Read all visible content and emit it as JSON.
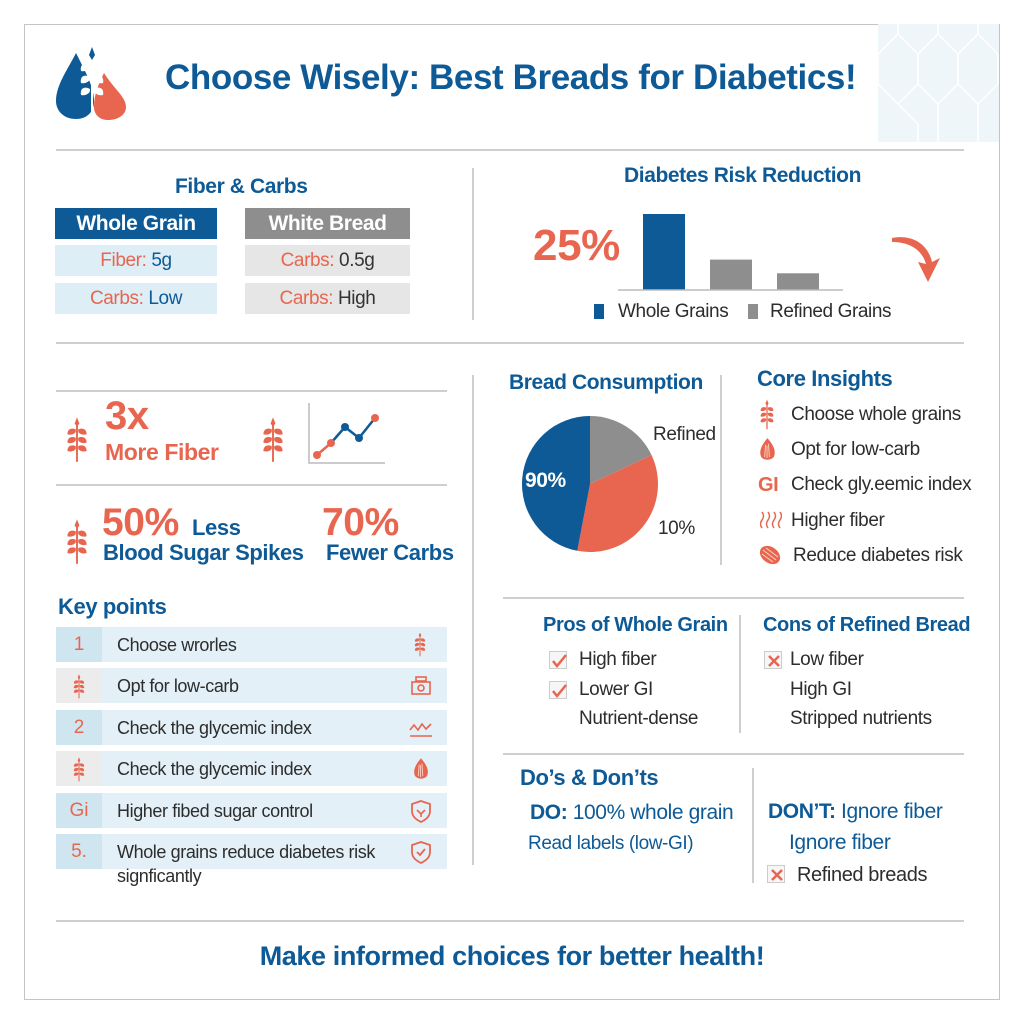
{
  "title": "Choose Wisely: Best Breads for Diabetics!",
  "colors": {
    "blue": "#0d5a96",
    "orange": "#e8664f",
    "gray": "#8e8e8e",
    "light_blue": "#ddeef7"
  },
  "fiber_carbs": {
    "title": "Fiber & Carbs",
    "whole_grain": {
      "header": "Whole Grain",
      "rows": [
        {
          "label": "Fiber:",
          "value": "5g"
        },
        {
          "label": "Carbs:",
          "value": "Low"
        }
      ]
    },
    "white_bread": {
      "header": "White Bread",
      "rows": [
        {
          "label": "Carbs:",
          "value": "0.5g"
        },
        {
          "label": "Carbs:",
          "value": "High"
        }
      ]
    }
  },
  "risk": {
    "title": "Diabetes Risk Reduction",
    "big_stat": "25%",
    "bars": [
      {
        "series": "Whole Grains",
        "value": 100
      },
      {
        "series": "Refined Grains",
        "value": 40
      },
      {
        "series": "Refined Grains",
        "value": 22
      }
    ],
    "legend": [
      "Whole Grains",
      "Refined Grains"
    ],
    "icon": "curved-down-arrow-icon"
  },
  "stats": {
    "fiber": {
      "value": "3x",
      "label": "More Fiber"
    },
    "spikes": {
      "value": "50%",
      "suffix": "Less",
      "label": "Blood Sugar Spikes"
    },
    "carbs": {
      "value": "70%",
      "label": "Fewer Carbs"
    }
  },
  "key_points": {
    "title": "Key points",
    "items": [
      {
        "marker": "1",
        "text": "Choose wrorles",
        "icon": "wheat-icon"
      },
      {
        "marker": "",
        "marker_icon": "wheat-icon",
        "text": "Opt for low-carb",
        "icon": "scale-icon"
      },
      {
        "marker": "2",
        "text": "Check the glycemic index",
        "icon": "wave-chart-icon"
      },
      {
        "marker": "",
        "marker_icon": "wheat-icon",
        "text": "Check the glycemic index",
        "icon": "grain-seed-icon"
      },
      {
        "marker": "Gi",
        "text": "Higher fibed sugar control",
        "icon": "shield-leaf-icon"
      },
      {
        "marker": "5.",
        "text": "Whole grains reduce diabetes risk",
        "text2": "signficantly",
        "icon": "shield-check-icon"
      }
    ]
  },
  "consumption": {
    "title": "Bread Consumption",
    "labels": {
      "inner": "90%",
      "refined": "Refined",
      "outer": "10%"
    },
    "slices": [
      {
        "name": "gray",
        "value": 18,
        "color": "#8e8e8e"
      },
      {
        "name": "orange",
        "value": 35,
        "color": "#e8664f"
      },
      {
        "name": "blue",
        "value": 47,
        "color": "#0d5a96"
      }
    ]
  },
  "insights": {
    "title": "Core Insights",
    "items": [
      {
        "icon": "wheat-icon",
        "text": "Choose whole grains"
      },
      {
        "icon": "grain-seed-icon",
        "text": "Opt for low-carb"
      },
      {
        "icon": "gi-icon",
        "icon_text": "GI",
        "text": "Check gly.eemic index"
      },
      {
        "icon": "fiber-waves-icon",
        "text": "Higher fiber"
      },
      {
        "icon": "seed-icon",
        "text": "Reduce diabetes risk"
      }
    ]
  },
  "pros": {
    "title": "Pros of Whole Grain",
    "items": [
      {
        "text": "High fiber",
        "mark": "check"
      },
      {
        "text": "Lower GI",
        "mark": "check"
      },
      {
        "text": "Nutrient-dense",
        "mark": ""
      }
    ]
  },
  "cons": {
    "title": "Cons of Refined Bread",
    "items": [
      {
        "text": "Low fiber",
        "mark": "x"
      },
      {
        "text": "High GI",
        "mark": ""
      },
      {
        "text": "Stripped nutrients",
        "mark": ""
      }
    ]
  },
  "dos": {
    "title": "Do’s & Don’ts",
    "do_label": "DO:",
    "do_text": "100% whole grain",
    "do_2": "Read labels (low-GI)",
    "dont_label": "DON’T:",
    "dont_text": "Ignore fiber",
    "dont_2": "Ignore fiber",
    "dont_3": "Refined breads"
  },
  "footer": "Make informed choices for better health!"
}
